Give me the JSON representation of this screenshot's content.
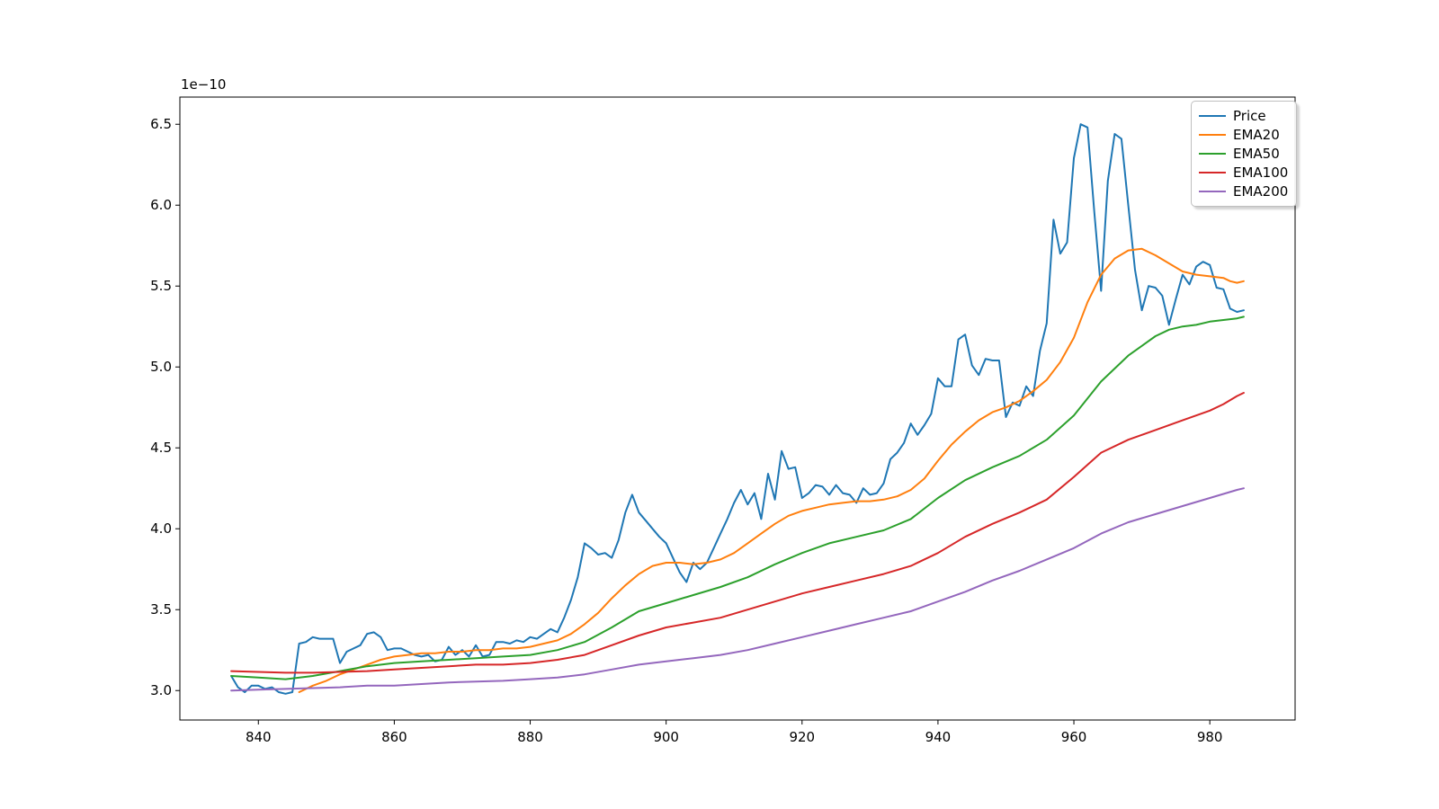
{
  "chart_data": {
    "type": "line",
    "title": "",
    "xlabel": "",
    "ylabel": "",
    "offset_text": "1e−10",
    "grid": false,
    "background": "#ffffff",
    "spine_color": "#000000",
    "xlim": [
      828.45,
      992.55
    ],
    "ylim": [
      2.818,
      6.668
    ],
    "xticks": [
      840,
      860,
      880,
      900,
      920,
      940,
      960,
      980
    ],
    "yticks": [
      3.0,
      3.5,
      4.0,
      4.5,
      5.0,
      5.5,
      6.0,
      6.5
    ],
    "legend": {
      "position": "upper right",
      "entries": [
        "Price",
        "EMA20",
        "EMA50",
        "EMA100",
        "EMA200"
      ]
    },
    "series": [
      {
        "name": "Price",
        "color": "#1f77b4",
        "x_start": 836,
        "x_step": 1,
        "values": [
          3.09,
          3.02,
          2.99,
          3.03,
          3.03,
          3.01,
          3.02,
          2.99,
          2.98,
          2.99,
          3.29,
          3.3,
          3.33,
          3.32,
          3.32,
          3.32,
          3.17,
          3.24,
          3.26,
          3.28,
          3.35,
          3.36,
          3.33,
          3.25,
          3.26,
          3.26,
          3.24,
          3.22,
          3.21,
          3.22,
          3.18,
          3.19,
          3.27,
          3.22,
          3.25,
          3.21,
          3.28,
          3.21,
          3.22,
          3.3,
          3.3,
          3.29,
          3.31,
          3.3,
          3.33,
          3.32,
          3.35,
          3.38,
          3.36,
          3.45,
          3.56,
          3.7,
          3.91,
          3.88,
          3.84,
          3.85,
          3.82,
          3.93,
          4.1,
          4.21,
          4.1,
          4.05,
          4.0,
          3.95,
          3.91,
          3.82,
          3.73,
          3.67,
          3.79,
          3.75,
          3.79,
          3.88,
          3.97,
          4.06,
          4.16,
          4.24,
          4.15,
          4.22,
          4.06,
          4.34,
          4.18,
          4.48,
          4.37,
          4.38,
          4.19,
          4.22,
          4.27,
          4.26,
          4.21,
          4.27,
          4.22,
          4.21,
          4.16,
          4.25,
          4.21,
          4.22,
          4.28,
          4.43,
          4.47,
          4.53,
          4.65,
          4.58,
          4.64,
          4.71,
          4.93,
          4.88,
          4.88,
          5.17,
          5.2,
          5.01,
          4.95,
          5.05,
          5.04,
          5.04,
          4.69,
          4.78,
          4.76,
          4.88,
          4.82,
          5.1,
          5.27,
          5.91,
          5.7,
          5.77,
          6.29,
          6.5,
          6.48,
          5.96,
          5.47,
          6.15,
          6.44,
          6.41,
          6.0,
          5.6,
          5.35,
          5.5,
          5.49,
          5.44,
          5.26,
          5.42,
          5.57,
          5.51,
          5.62,
          5.65,
          5.63,
          5.49,
          5.48,
          5.36,
          5.34,
          5.35
        ]
      },
      {
        "name": "EMA20",
        "color": "#ff7f0e",
        "points": [
          [
            846,
            2.99
          ],
          [
            848,
            3.03
          ],
          [
            850,
            3.06
          ],
          [
            852,
            3.1
          ],
          [
            854,
            3.13
          ],
          [
            856,
            3.16
          ],
          [
            858,
            3.19
          ],
          [
            860,
            3.21
          ],
          [
            862,
            3.22
          ],
          [
            864,
            3.23
          ],
          [
            866,
            3.23
          ],
          [
            868,
            3.24
          ],
          [
            870,
            3.24
          ],
          [
            872,
            3.25
          ],
          [
            874,
            3.25
          ],
          [
            876,
            3.26
          ],
          [
            878,
            3.26
          ],
          [
            880,
            3.27
          ],
          [
            882,
            3.29
          ],
          [
            884,
            3.31
          ],
          [
            886,
            3.35
          ],
          [
            888,
            3.41
          ],
          [
            890,
            3.48
          ],
          [
            892,
            3.57
          ],
          [
            894,
            3.65
          ],
          [
            896,
            3.72
          ],
          [
            898,
            3.77
          ],
          [
            900,
            3.79
          ],
          [
            902,
            3.79
          ],
          [
            904,
            3.78
          ],
          [
            906,
            3.79
          ],
          [
            908,
            3.81
          ],
          [
            910,
            3.85
          ],
          [
            912,
            3.91
          ],
          [
            914,
            3.97
          ],
          [
            916,
            4.03
          ],
          [
            918,
            4.08
          ],
          [
            920,
            4.11
          ],
          [
            922,
            4.13
          ],
          [
            924,
            4.15
          ],
          [
            926,
            4.16
          ],
          [
            928,
            4.17
          ],
          [
            930,
            4.17
          ],
          [
            932,
            4.18
          ],
          [
            934,
            4.2
          ],
          [
            936,
            4.24
          ],
          [
            938,
            4.31
          ],
          [
            940,
            4.42
          ],
          [
            942,
            4.52
          ],
          [
            944,
            4.6
          ],
          [
            946,
            4.67
          ],
          [
            948,
            4.72
          ],
          [
            950,
            4.75
          ],
          [
            952,
            4.79
          ],
          [
            954,
            4.85
          ],
          [
            956,
            4.92
          ],
          [
            958,
            5.03
          ],
          [
            960,
            5.18
          ],
          [
            962,
            5.4
          ],
          [
            964,
            5.57
          ],
          [
            966,
            5.67
          ],
          [
            968,
            5.72
          ],
          [
            970,
            5.73
          ],
          [
            972,
            5.69
          ],
          [
            974,
            5.64
          ],
          [
            976,
            5.59
          ],
          [
            978,
            5.57
          ],
          [
            980,
            5.56
          ],
          [
            982,
            5.55
          ],
          [
            983,
            5.53
          ],
          [
            984,
            5.52
          ],
          [
            985,
            5.53
          ]
        ]
      },
      {
        "name": "EMA50",
        "color": "#2ca02c",
        "points": [
          [
            836,
            3.09
          ],
          [
            840,
            3.08
          ],
          [
            844,
            3.07
          ],
          [
            848,
            3.09
          ],
          [
            852,
            3.12
          ],
          [
            856,
            3.15
          ],
          [
            860,
            3.17
          ],
          [
            864,
            3.18
          ],
          [
            868,
            3.19
          ],
          [
            872,
            3.2
          ],
          [
            876,
            3.21
          ],
          [
            880,
            3.22
          ],
          [
            884,
            3.25
          ],
          [
            888,
            3.3
          ],
          [
            892,
            3.39
          ],
          [
            896,
            3.49
          ],
          [
            900,
            3.54
          ],
          [
            904,
            3.59
          ],
          [
            908,
            3.64
          ],
          [
            912,
            3.7
          ],
          [
            916,
            3.78
          ],
          [
            920,
            3.85
          ],
          [
            924,
            3.91
          ],
          [
            928,
            3.95
          ],
          [
            932,
            3.99
          ],
          [
            936,
            4.06
          ],
          [
            940,
            4.19
          ],
          [
            944,
            4.3
          ],
          [
            948,
            4.38
          ],
          [
            952,
            4.45
          ],
          [
            956,
            4.55
          ],
          [
            960,
            4.7
          ],
          [
            964,
            4.91
          ],
          [
            968,
            5.07
          ],
          [
            970,
            5.13
          ],
          [
            972,
            5.19
          ],
          [
            974,
            5.23
          ],
          [
            976,
            5.25
          ],
          [
            978,
            5.26
          ],
          [
            980,
            5.28
          ],
          [
            982,
            5.29
          ],
          [
            984,
            5.3
          ],
          [
            985,
            5.31
          ]
        ]
      },
      {
        "name": "EMA100",
        "color": "#d62728",
        "points": [
          [
            836,
            3.12
          ],
          [
            840,
            3.115
          ],
          [
            844,
            3.11
          ],
          [
            848,
            3.11
          ],
          [
            852,
            3.115
          ],
          [
            856,
            3.12
          ],
          [
            860,
            3.13
          ],
          [
            864,
            3.14
          ],
          [
            868,
            3.15
          ],
          [
            872,
            3.16
          ],
          [
            876,
            3.16
          ],
          [
            880,
            3.17
          ],
          [
            884,
            3.19
          ],
          [
            888,
            3.22
          ],
          [
            892,
            3.28
          ],
          [
            896,
            3.34
          ],
          [
            900,
            3.39
          ],
          [
            904,
            3.42
          ],
          [
            908,
            3.45
          ],
          [
            912,
            3.5
          ],
          [
            916,
            3.55
          ],
          [
            920,
            3.6
          ],
          [
            924,
            3.64
          ],
          [
            928,
            3.68
          ],
          [
            932,
            3.72
          ],
          [
            936,
            3.77
          ],
          [
            940,
            3.85
          ],
          [
            944,
            3.95
          ],
          [
            948,
            4.03
          ],
          [
            952,
            4.1
          ],
          [
            956,
            4.18
          ],
          [
            960,
            4.32
          ],
          [
            964,
            4.47
          ],
          [
            968,
            4.55
          ],
          [
            972,
            4.61
          ],
          [
            976,
            4.67
          ],
          [
            980,
            4.73
          ],
          [
            982,
            4.77
          ],
          [
            984,
            4.82
          ],
          [
            985,
            4.84
          ]
        ]
      },
      {
        "name": "EMA200",
        "color": "#9467bd",
        "points": [
          [
            836,
            3.0
          ],
          [
            840,
            3.005
          ],
          [
            844,
            3.01
          ],
          [
            848,
            3.015
          ],
          [
            852,
            3.02
          ],
          [
            856,
            3.03
          ],
          [
            860,
            3.03
          ],
          [
            864,
            3.04
          ],
          [
            868,
            3.05
          ],
          [
            872,
            3.055
          ],
          [
            876,
            3.06
          ],
          [
            880,
            3.07
          ],
          [
            884,
            3.08
          ],
          [
            888,
            3.1
          ],
          [
            892,
            3.13
          ],
          [
            896,
            3.16
          ],
          [
            900,
            3.18
          ],
          [
            904,
            3.2
          ],
          [
            908,
            3.22
          ],
          [
            912,
            3.25
          ],
          [
            916,
            3.29
          ],
          [
            920,
            3.33
          ],
          [
            924,
            3.37
          ],
          [
            928,
            3.41
          ],
          [
            932,
            3.45
          ],
          [
            936,
            3.49
          ],
          [
            940,
            3.55
          ],
          [
            944,
            3.61
          ],
          [
            948,
            3.68
          ],
          [
            952,
            3.74
          ],
          [
            956,
            3.81
          ],
          [
            960,
            3.88
          ],
          [
            964,
            3.97
          ],
          [
            968,
            4.04
          ],
          [
            972,
            4.09
          ],
          [
            976,
            4.14
          ],
          [
            980,
            4.19
          ],
          [
            984,
            4.24
          ],
          [
            985,
            4.25
          ]
        ]
      }
    ]
  }
}
